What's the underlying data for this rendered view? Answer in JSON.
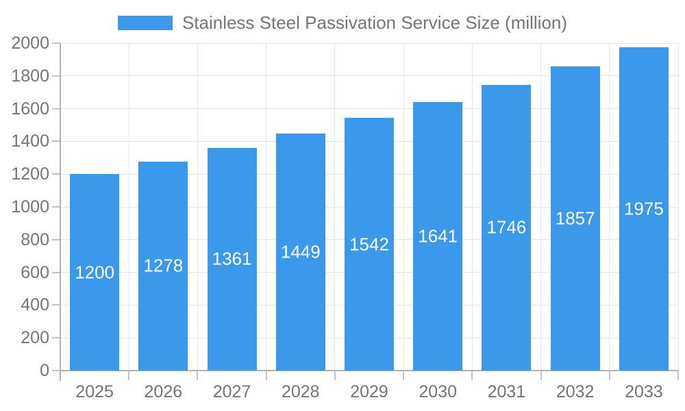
{
  "chart_data": {
    "type": "bar",
    "categories": [
      "2025",
      "2026",
      "2027",
      "2028",
      "2029",
      "2030",
      "2031",
      "2032",
      "2033"
    ],
    "series": [
      {
        "name": "Stainless Steel Passivation Service Size (million)",
        "values": [
          1200,
          1278,
          1361,
          1449,
          1542,
          1641,
          1746,
          1857,
          1975
        ]
      }
    ],
    "xlabel": "",
    "ylabel": "",
    "ylim": [
      0,
      2000
    ],
    "yticks": [
      0,
      200,
      400,
      600,
      800,
      1000,
      1200,
      1400,
      1600,
      1800,
      2000
    ],
    "grid": true,
    "legend_position": "top",
    "value_label_position": "inside-center",
    "colors": {
      "bar": "#3b99ec",
      "value_label": "#ffffff",
      "axis_text": "#757575",
      "legend_text": "#757575",
      "grid_line": "#e6e6e6",
      "axis_line": "#b2b2b2",
      "tick_mark": "#c4c4c4",
      "background": "#ffffff"
    }
  }
}
